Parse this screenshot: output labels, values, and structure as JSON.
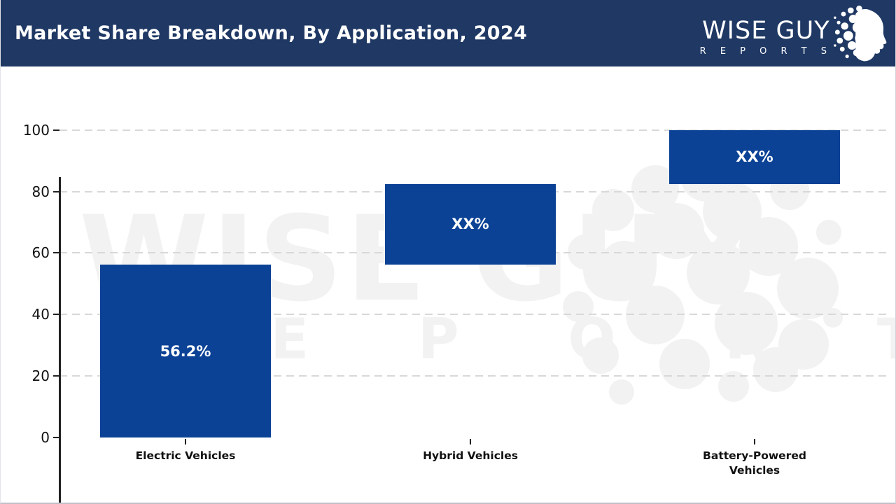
{
  "header": {
    "title": "Market Share Breakdown, By Application, 2024",
    "bg_color": "#1f3864",
    "logo": {
      "line1": "WISE GUY",
      "line2": "R E P O R T S"
    }
  },
  "watermark": {
    "line1": "WISE GUY",
    "line2": "R E P O R T S",
    "color": "#f2f2f2"
  },
  "chart_data": {
    "type": "bar",
    "subtype": "waterfall",
    "title": "Market Share Breakdown, By Application, 2024",
    "categories": [
      "Electric Vehicles",
      "Hybrid Vehicles",
      "Battery-Powered Vehicles"
    ],
    "segments": [
      {
        "category": "Electric Vehicles",
        "start": 0,
        "end": 56.2,
        "label": "56.2%"
      },
      {
        "category": "Hybrid Vehicles",
        "start": 56.2,
        "end": 82.5,
        "label": "XX%"
      },
      {
        "category": "Battery-Powered Vehicles",
        "start": 82.5,
        "end": 100,
        "label": "XX%"
      }
    ],
    "xlabel": "",
    "ylabel": "",
    "ylim": [
      0,
      100
    ],
    "yticks": [
      0,
      20,
      40,
      60,
      80,
      100
    ],
    "grid": "horizontal-dashed",
    "legend": "none",
    "bar_color": "#0b4295",
    "bar_label_color": "#ffffff",
    "grid_color": "#d8d8d8",
    "axis_color": "#222222"
  }
}
